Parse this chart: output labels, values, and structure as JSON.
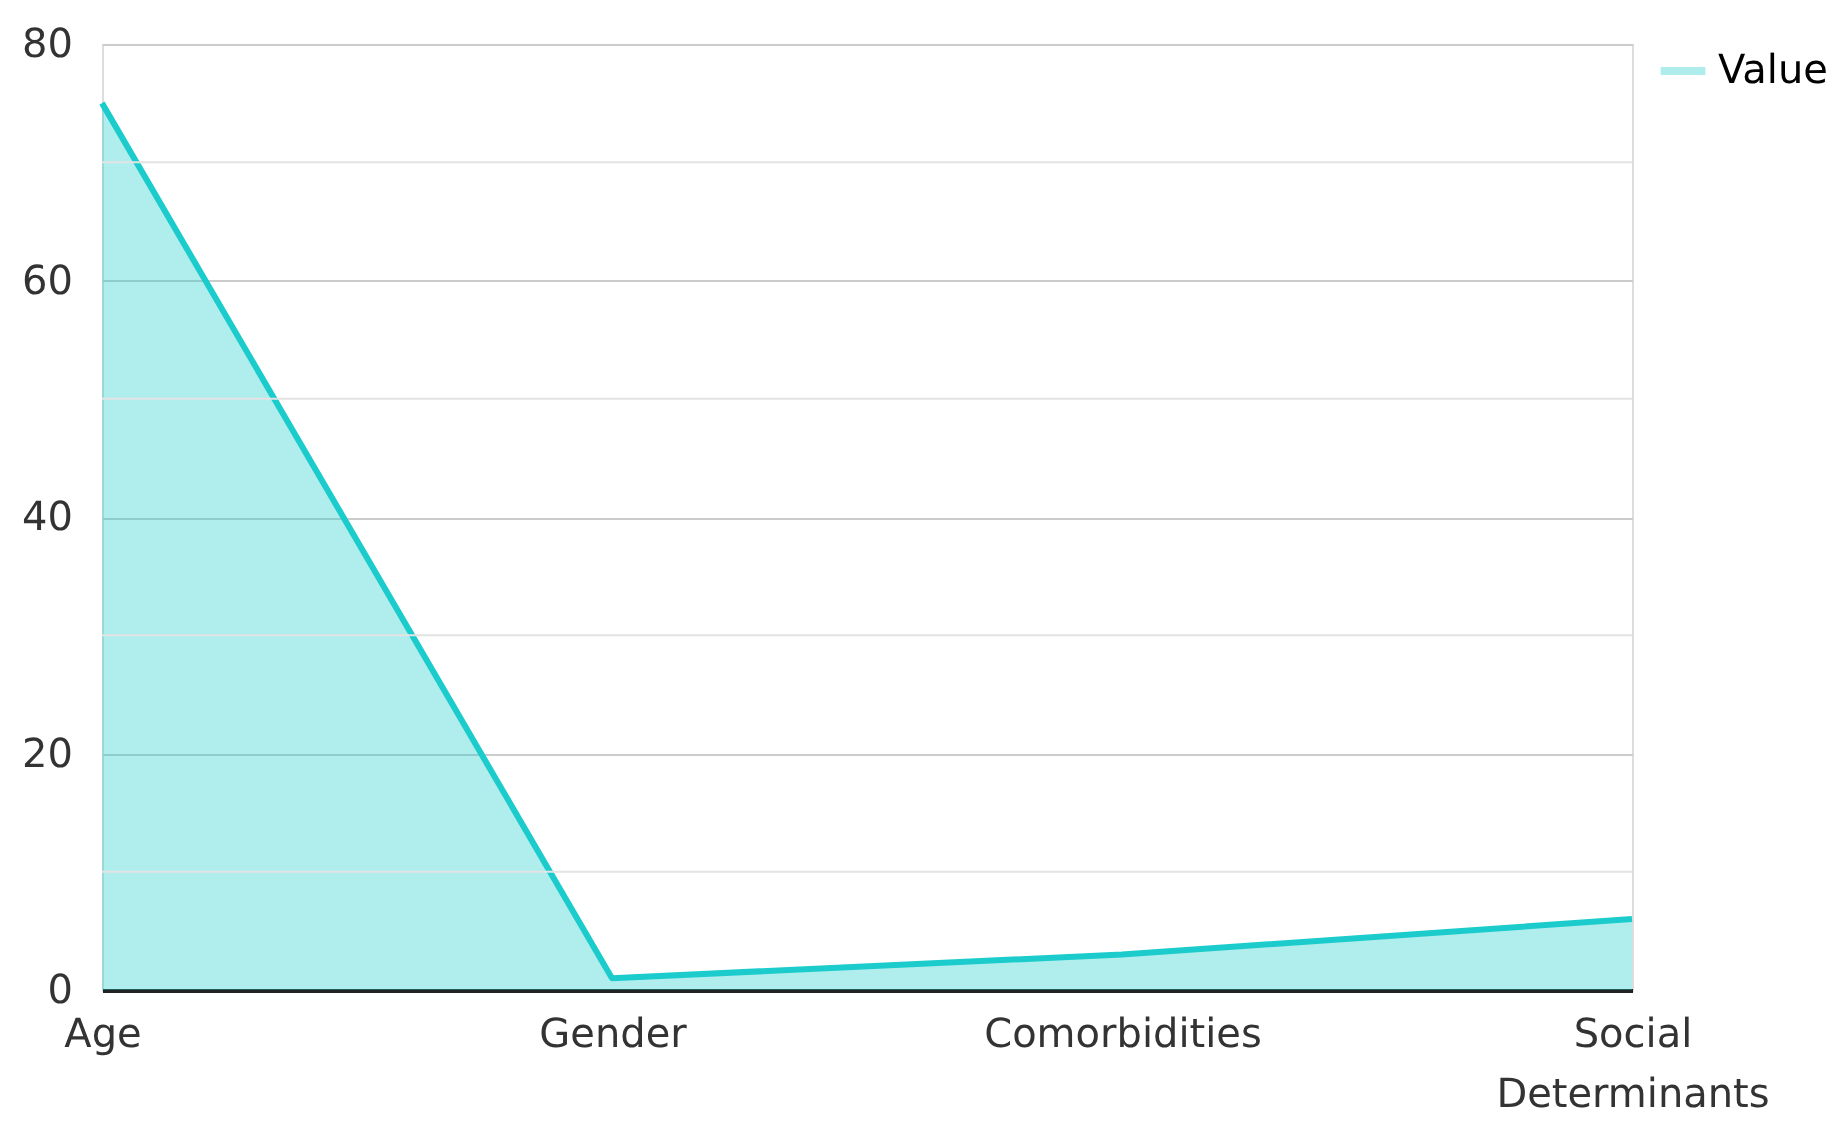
{
  "chart_data": {
    "type": "area",
    "categories": [
      "Age",
      "Gender",
      "Comorbidities",
      "Social Determinants"
    ],
    "series": [
      {
        "name": "Value",
        "color": "#1ccccc",
        "values": [
          75,
          1,
          3,
          6
        ]
      }
    ],
    "ylim": [
      0,
      80
    ],
    "yticks": [
      0,
      {
        "value": 10,
        "label": null
      },
      20,
      {
        "value": 30,
        "label": null
      },
      40,
      {
        "value": 50,
        "label": null
      },
      60,
      {
        "value": 70,
        "label": null
      },
      80
    ],
    "grid": "y",
    "legend": "top right"
  }
}
